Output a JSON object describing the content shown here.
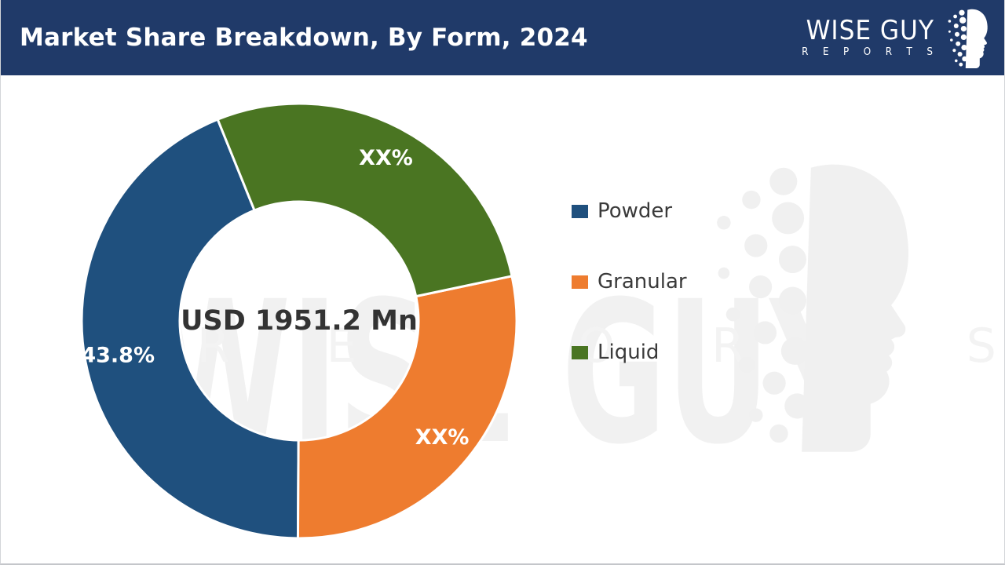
{
  "header": {
    "title": "Market Share Breakdown, By Form, 2024",
    "logo": {
      "primary": "WISE GUY",
      "secondary": "R E P O R T S"
    }
  },
  "watermark": {
    "primary": "WISE GUY",
    "secondary": "R E P O R T S"
  },
  "chart_data": {
    "type": "pie",
    "subtype": "donut",
    "title": "Market Share Breakdown, By Form, 2024",
    "center_label": "USD 1951.2 Mn",
    "categories": [
      "Powder",
      "Granular",
      "Liquid"
    ],
    "values": [
      43.8,
      28.4,
      27.8
    ],
    "slice_labels": [
      "43.8%",
      "XX%",
      "XX%"
    ],
    "colors": [
      "#1f507e",
      "#ee7c2f",
      "#4a7522"
    ],
    "slice_label_color": "#ffffff",
    "start_angle_deg": 112,
    "direction": "counterclockwise",
    "legend_position": "right",
    "legend": [
      {
        "label": "Powder",
        "color": "#1f507e"
      },
      {
        "label": "Granular",
        "color": "#ee7c2f"
      },
      {
        "label": "Liquid",
        "color": "#4a7522"
      }
    ]
  },
  "colors": {
    "header_bg": "#203a69",
    "center_text": "#333333",
    "legend_text": "#3a3a3a",
    "watermark": "#f1f1f1"
  }
}
